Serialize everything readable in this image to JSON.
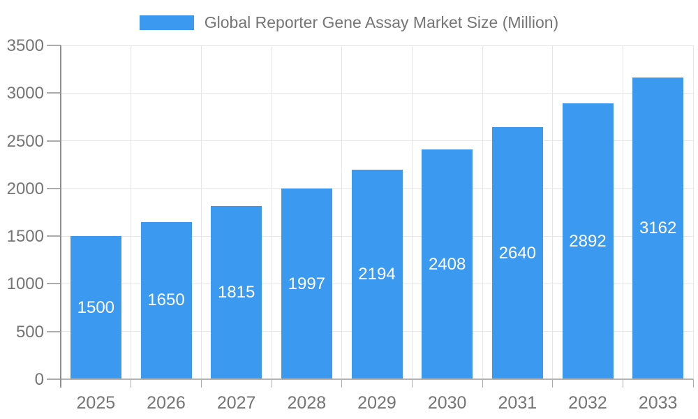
{
  "chart_data": {
    "type": "bar",
    "title": "Global Reporter Gene Assay Market Size (Million)",
    "legend": {
      "position": "top-center",
      "label": "Global Reporter Gene Assay Market Size (Million)"
    },
    "categories": [
      "2025",
      "2026",
      "2027",
      "2028",
      "2029",
      "2030",
      "2031",
      "2032",
      "2033"
    ],
    "series": [
      {
        "name": "Global Reporter Gene Assay Market Size (Million)",
        "values": [
          1500,
          1650,
          1815,
          1997,
          2194,
          2408,
          2640,
          2892,
          3162
        ]
      }
    ],
    "value_labels": [
      "1500",
      "1650",
      "1815",
      "1997",
      "2194",
      "2408",
      "2640",
      "2892",
      "3162"
    ],
    "xlabel": "",
    "ylabel": "",
    "ylim": [
      0,
      3500
    ],
    "ytick_step": 500,
    "ytick_labels": [
      "0",
      "500",
      "1000",
      "1500",
      "2000",
      "2500",
      "3000",
      "3500"
    ],
    "grid": true,
    "colors": {
      "bar": "#3B99F0",
      "value_label": "#FFFFFF",
      "title_text": "#757575",
      "axis_text": "#757575",
      "gridline": "#E6E6E6",
      "x_axis_line": "#B3B3B3",
      "y_axis_line": "#8F8F8F",
      "tick": "#ABABAB",
      "background": "#FFFFFF"
    }
  }
}
